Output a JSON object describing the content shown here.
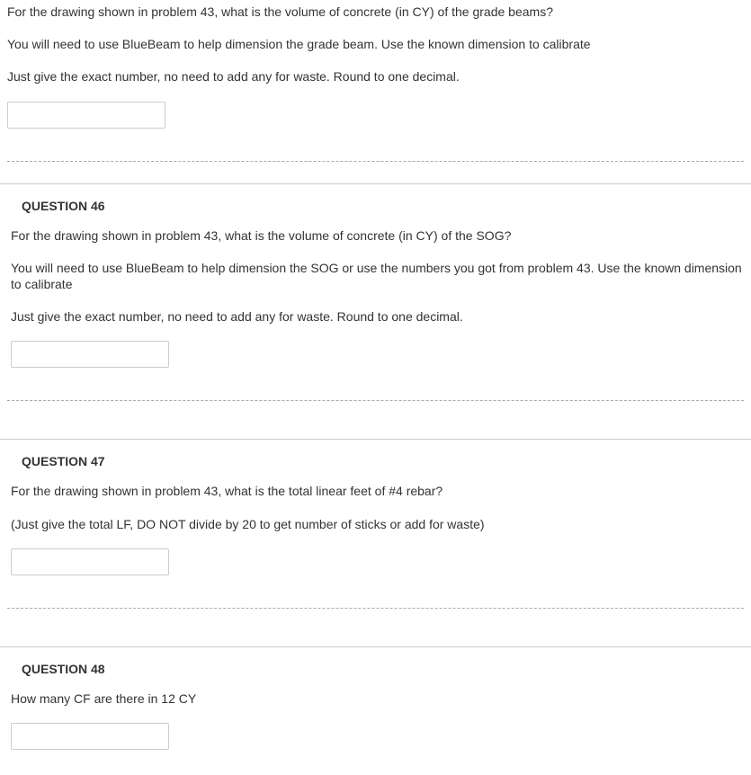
{
  "q45": {
    "line1": "For the drawing shown in problem 43, what is the volume of concrete (in CY) of the grade beams?",
    "line2": "You will need to use BlueBeam to help dimension the grade beam.  Use the known dimension to calibrate",
    "line3": "Just give the exact number, no need to add any for waste.  Round to one decimal."
  },
  "q46": {
    "header": "QUESTION 46",
    "line1": "For the drawing shown in problem 43, what is the volume of concrete (in CY) of the SOG?",
    "line2": "You will need to use BlueBeam to help dimension the SOG or use the numbers you got from problem 43.  Use the known dimension to calibrate",
    "line3": "Just give the exact number, no need to add any for waste.  Round to one decimal."
  },
  "q47": {
    "header": "QUESTION 47",
    "line1": "For the drawing shown in problem 43, what is the total linear feet of #4 rebar?",
    "line2": "(Just give the total LF, DO NOT divide by 20 to get number of sticks or add for waste)"
  },
  "q48": {
    "header": "QUESTION 48",
    "line1": "How many CF are there in 12 CY"
  }
}
